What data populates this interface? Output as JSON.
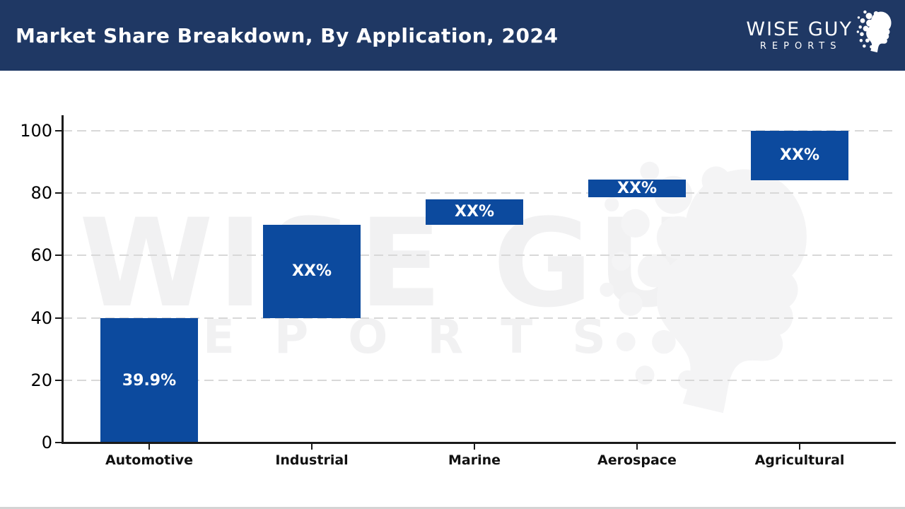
{
  "header": {
    "title": "Market Share Breakdown, By Application, 2024",
    "logo": {
      "line1": "WISE GUY",
      "line2": "REPORTS"
    }
  },
  "watermark": {
    "line1": "WISE GUY",
    "line2": "REPORTS"
  },
  "colors": {
    "header_bg": "#1f3864",
    "bar": "#0c4a9e",
    "grid": "#d8d8d8",
    "axis": "#1a1a1a",
    "bar_label": "#ffffff",
    "watermark_text": "#f1f1f2",
    "watermark_head": "#f4f4f5",
    "tick_label": "#000000",
    "category_label": "#111111"
  },
  "chart_data": {
    "type": "bar",
    "subtype": "waterfall",
    "title": "Market Share Breakdown, By Application, 2024",
    "xlabel": "",
    "ylabel": "",
    "ylim": [
      0,
      100
    ],
    "yticks": [
      0,
      20,
      40,
      60,
      80,
      100
    ],
    "grid": "horizontal-dashed",
    "legend": "none",
    "categories": [
      "Automotive",
      "Industrial",
      "Marine",
      "Aerospace",
      "Agricultural"
    ],
    "segments": [
      {
        "category": "Automotive",
        "start": 0,
        "end": 39.9,
        "label": "39.9%"
      },
      {
        "category": "Industrial",
        "start": 39.9,
        "end": 69.9,
        "label": "XX%"
      },
      {
        "category": "Marine",
        "start": 69.9,
        "end": 78.0,
        "label": "XX%"
      },
      {
        "category": "Aerospace",
        "start": 78.6,
        "end": 84.4,
        "label": "XX%"
      },
      {
        "category": "Agricultural",
        "start": 84.2,
        "end": 100,
        "label": "XX%"
      }
    ]
  }
}
